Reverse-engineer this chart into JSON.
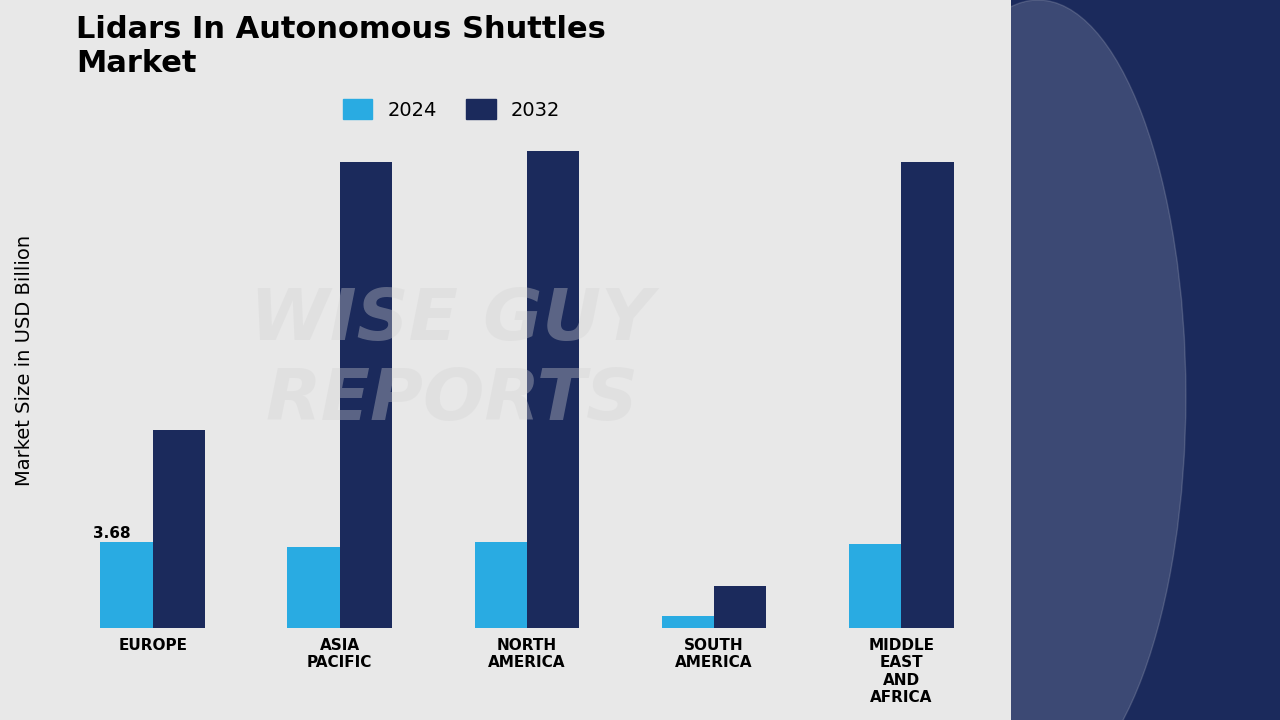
{
  "title": "Lidars In Autonomous Shuttles\nMarket",
  "ylabel": "Market Size in USD Billion",
  "categories": [
    "EUROPE",
    "ASIA\nPACIFIC",
    "NORTH\nAMERICA",
    "SOUTH\nAMERICA",
    "MIDDLE\nEAST\nAND\nAFRICA"
  ],
  "series": {
    "2024": [
      3.68,
      3.5,
      3.7,
      0.5,
      3.6
    ],
    "2032": [
      8.5,
      20.0,
      20.5,
      1.8,
      20.0
    ]
  },
  "colors": {
    "2024": "#29ABE2",
    "2032": "#1B2A5C"
  },
  "annotation_label": "3.68",
  "annotation_category_idx": 0,
  "annotation_series": "2024",
  "bar_width": 0.28,
  "ylim": [
    0,
    23
  ],
  "legend_position": "upper center",
  "background_color": "#E8E8E8",
  "title_fontsize": 22,
  "axis_label_fontsize": 14,
  "tick_label_fontsize": 11,
  "legend_fontsize": 14,
  "annotation_fontsize": 11
}
